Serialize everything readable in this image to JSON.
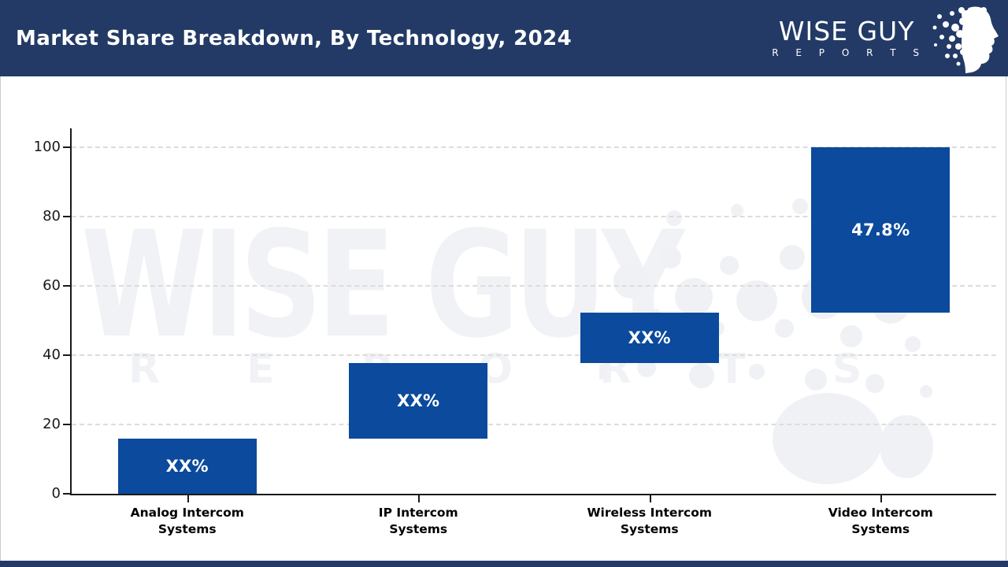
{
  "header": {
    "title": "Market Share Breakdown, By Technology, 2024",
    "logo": {
      "line1": "WISE GUY",
      "line2": "R E P O R T S"
    }
  },
  "watermark": {
    "line1": "WISE GUY",
    "line2": "R E P O R T S"
  },
  "colors": {
    "header_bg": "#233a66",
    "footer_bg": "#233a66",
    "bar": "#0b4a9c",
    "bar_label": "#ffffff",
    "grid": "#dcdcdc",
    "axis": "#1a1a1a",
    "watermark": "#f1f2f5"
  },
  "chart_data": {
    "type": "bar",
    "subtype": "waterfall",
    "title": "Market Share Breakdown, By Technology, 2024",
    "categories": [
      "Analog Intercom\nSystems",
      "IP Intercom\nSystems",
      "Wireless Intercom\nSystems",
      "Video Intercom\nSystems"
    ],
    "segments": [
      {
        "category": "Analog Intercom Systems",
        "start": 0,
        "end": 16,
        "label": "XX%"
      },
      {
        "category": "IP Intercom Systems",
        "start": 16,
        "end": 37.7,
        "label": "XX%"
      },
      {
        "category": "Wireless Intercom Systems",
        "start": 37.7,
        "end": 52.2,
        "label": "XX%"
      },
      {
        "category": "Video Intercom Systems",
        "start": 52.2,
        "end": 100,
        "label": "47.8%"
      }
    ],
    "ylim": [
      0,
      100
    ],
    "yticks": [
      0,
      20,
      40,
      60,
      80,
      100
    ],
    "xlabel": "",
    "ylabel": "",
    "grid": "horizontal-dashed",
    "legend": "none",
    "bar_color": "#0b4a9c",
    "bar_label_color": "#ffffff"
  }
}
